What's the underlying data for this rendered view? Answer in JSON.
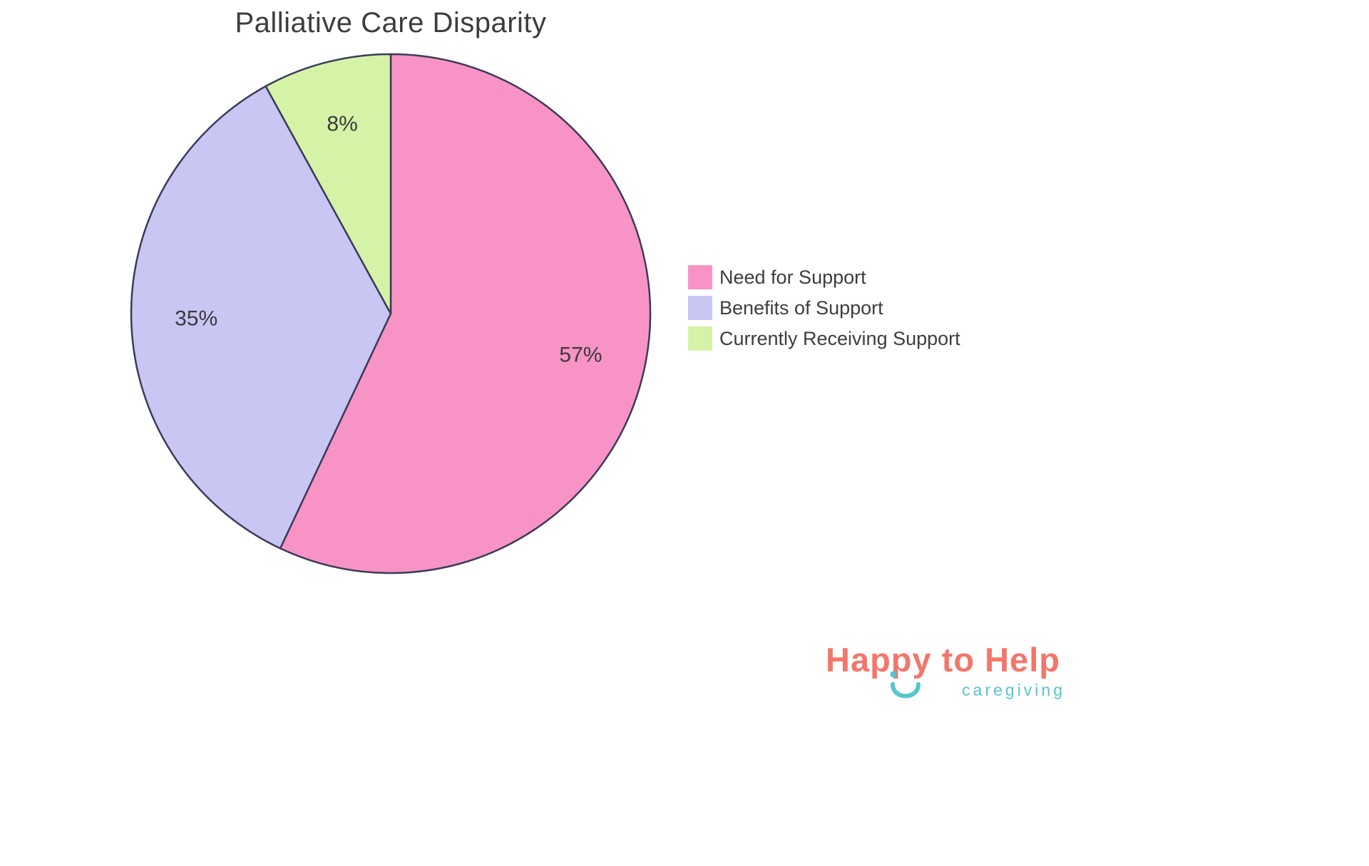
{
  "chart_data": {
    "type": "pie",
    "title": "Palliative Care Disparity",
    "start_angle_deg": 0,
    "direction": "clockwise",
    "stroke_color": "#3c3b5a",
    "legend_position": "right",
    "segments": [
      {
        "label": "Need for Support",
        "value": 57,
        "pct_label": "57%",
        "color": "#f893c6"
      },
      {
        "label": "Benefits of Support",
        "value": 35,
        "pct_label": "35%",
        "color": "#c9c6f4"
      },
      {
        "label": "Currently Receiving Support",
        "value": 8,
        "pct_label": "8%",
        "color": "#d5f3a7"
      }
    ]
  },
  "branding": {
    "name": "Happy to Help",
    "tagline": "caregiving",
    "primary_color": "#f3766b",
    "accent_color": "#55c5ce"
  }
}
